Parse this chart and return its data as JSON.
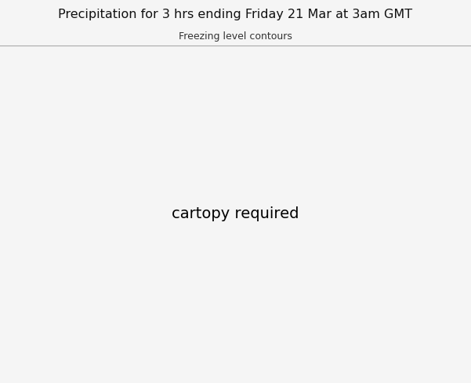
{
  "title": "Precipitation for 3 hrs ending Friday 21 Mar at 3am GMT",
  "subtitle": "Freezing level contours",
  "title_fontsize": 11.5,
  "subtitle_fontsize": 9.0,
  "fig_width": 6.01,
  "fig_height": 4.88,
  "dpi": 100,
  "header_bg": "#f5f5f5",
  "map_bg": "#d0d4ec",
  "ocean_color": "#cdd1ea",
  "land_color_base": "#b8b8b8",
  "contour_color": "#cc0000",
  "contour_lw": 1.0,
  "label_fontsize": 6.5,
  "border_lw": 0.4,
  "lon_min": -20.0,
  "lon_max": 30.0,
  "lat_min": 38.0,
  "lat_max": 68.0,
  "precip_band_color": "#c0c4e0",
  "precip_alpha": 0.55
}
